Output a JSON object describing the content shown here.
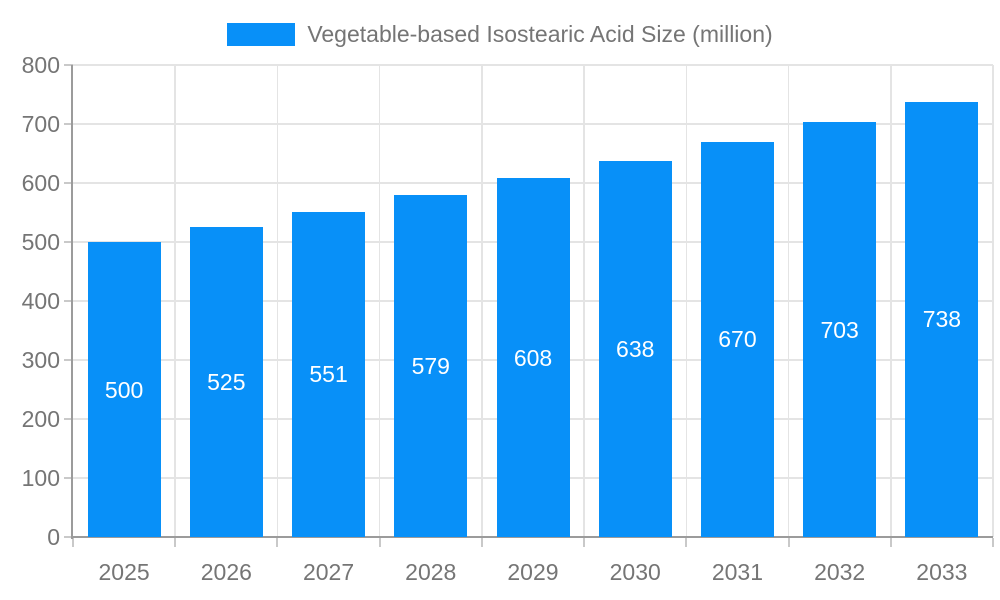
{
  "legend": {
    "label": "Vegetable-based Isostearic Acid Size (million)"
  },
  "colors": {
    "bar": "#0890f8",
    "bar_label": "#ffffff",
    "axis_line": "#9b9b9b",
    "gridline": "#e4e4e4",
    "tick": "#c9c9c9",
    "axis_text": "#757575",
    "background": "#ffffff"
  },
  "chart_data": {
    "type": "bar",
    "title": "Vegetable-based Isostearic Acid Size (million)",
    "categories": [
      "2025",
      "2026",
      "2027",
      "2028",
      "2029",
      "2030",
      "2031",
      "2032",
      "2033"
    ],
    "values": [
      500,
      525,
      551,
      579,
      608,
      638,
      670,
      703,
      738
    ],
    "xlabel": "",
    "ylabel": "",
    "ylim": [
      0,
      800
    ],
    "ytick_step": 100,
    "ytick_labels": [
      "0",
      "100",
      "200",
      "300",
      "400",
      "500",
      "600",
      "700",
      "800"
    ],
    "grid": true,
    "legend_position": "top",
    "bar_labels_inside": true
  }
}
